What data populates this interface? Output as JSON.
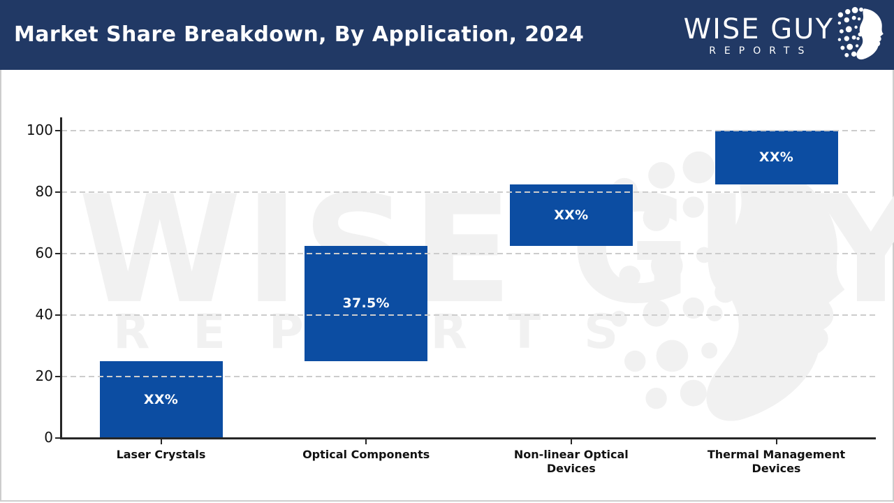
{
  "header": {
    "title": "Market Share Breakdown, By Application, 2024",
    "logo": {
      "main": "WISE GUY",
      "sub": "REPORTS"
    }
  },
  "watermark": {
    "line1": "WISE GUY",
    "line2": "REPORTS"
  },
  "colors": {
    "header_bg": "#213965",
    "bar_fill": "#0c4da2",
    "bar_label_text": "#ffffff",
    "axis": "#262626",
    "tick_label_text": "#111111",
    "gridline": "#cccccc",
    "watermark": "#f1f1f1",
    "frame_border": "#cdcdcd"
  },
  "chart_data": {
    "type": "bar",
    "variant": "floating-segment waterfall (stacked market-share breakdown)",
    "title": "Market Share Breakdown, By Application, 2024",
    "categories": [
      "Laser Crystals",
      "Optical Components",
      "Non-linear Optical Devices",
      "Thermal Management Devices"
    ],
    "category_labels_wrapped": [
      [
        "Laser Crystals"
      ],
      [
        "Optical Components"
      ],
      [
        "Non-linear Optical",
        "Devices"
      ],
      [
        "Thermal Management",
        "Devices"
      ]
    ],
    "segments": [
      {
        "category": "Laser Crystals",
        "start": 0,
        "end": 25,
        "height": 25,
        "label": "XX%"
      },
      {
        "category": "Optical Components",
        "start": 25,
        "end": 62.5,
        "height": 37.5,
        "label": "37.5%"
      },
      {
        "category": "Non-linear Optical Devices",
        "start": 62.5,
        "end": 82.5,
        "height": 20,
        "label": "XX%"
      },
      {
        "category": "Thermal Management Devices",
        "start": 82.5,
        "end": 100,
        "height": 17.5,
        "label": "XX%"
      }
    ],
    "xlabel": "",
    "ylabel": "",
    "ylim": [
      0,
      100
    ],
    "yticks": [
      0,
      20,
      40,
      60,
      80,
      100
    ],
    "grid": "horizontal dashed gridlines, drawn on top of bars",
    "legend": "none"
  }
}
